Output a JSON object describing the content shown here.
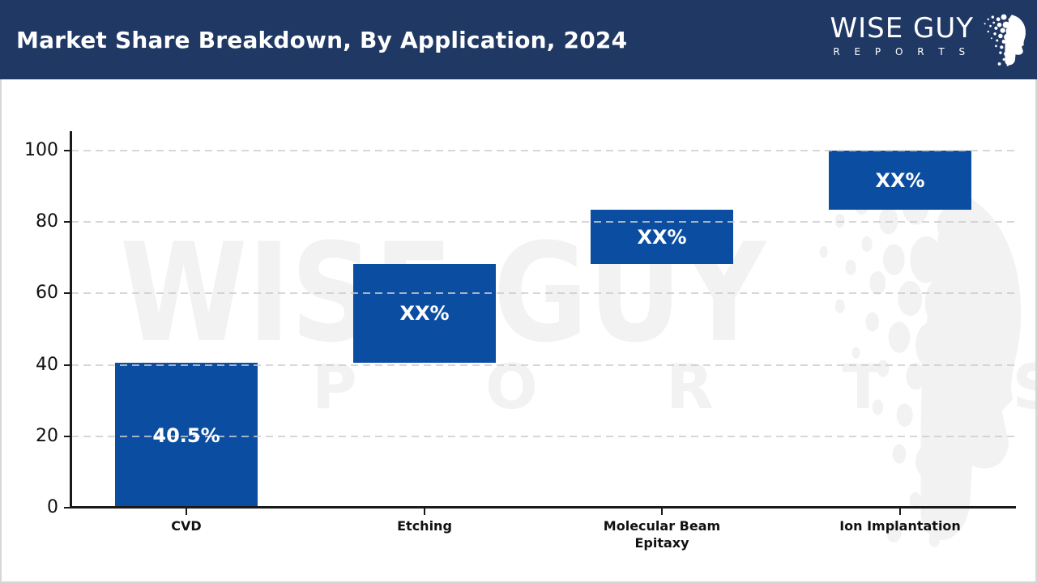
{
  "header": {
    "title": "Market Share Breakdown, By Application, 2024",
    "logo": {
      "wordmark": "WISE GUY",
      "subtext": "R E P O R T S"
    }
  },
  "watermark": {
    "line1": "WISE GUY",
    "line2": "P O R T S"
  },
  "chart_data": {
    "type": "bar",
    "subtype": "floating-segment-waterfall",
    "title": "Market Share Breakdown, By Application, 2024",
    "categories": [
      "CVD",
      "Etching",
      "Molecular Beam\nEpitaxy",
      "Ion Implantation"
    ],
    "segments": [
      {
        "category": "CVD",
        "start": 0,
        "end": 40.5,
        "label": "40.5%"
      },
      {
        "category": "Etching",
        "start": 40.5,
        "end": 68.3,
        "label": "XX%"
      },
      {
        "category": "Molecular Beam Epitaxy",
        "start": 68.3,
        "end": 83.4,
        "label": "XX%"
      },
      {
        "category": "Ion Implantation",
        "start": 83.4,
        "end": 100,
        "label": "XX%"
      }
    ],
    "y_ticks": [
      0,
      20,
      40,
      60,
      80,
      100
    ],
    "ylim": [
      0,
      105
    ],
    "xlabel": "",
    "ylabel": "",
    "grid": "horizontal-dashed",
    "legend": false,
    "bar_color": "#0B4DA1",
    "bar_label_color": "#FFFFFF"
  },
  "colors": {
    "header_bg": "#203864",
    "bar": "#0B4DA1",
    "axis": "#1A1A1A",
    "gridline": "#D9D9D9",
    "watermark": "#F2F2F2",
    "frame_border": "#D7D7D7"
  }
}
